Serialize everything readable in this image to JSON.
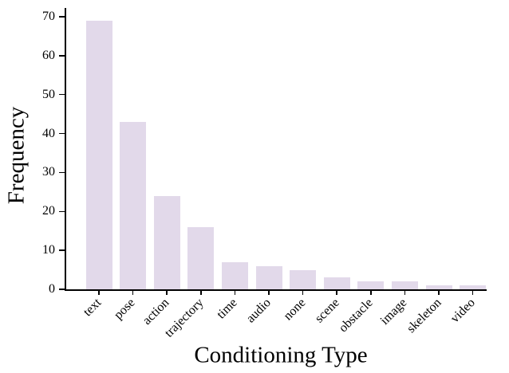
{
  "figure": {
    "background": "#ffffff"
  },
  "chart_data": {
    "type": "bar",
    "title": "",
    "xlabel": "Conditioning Type",
    "ylabel": "Frequency",
    "categories": [
      "text",
      "pose",
      "action",
      "trajectory",
      "time",
      "audio",
      "none",
      "scene",
      "obstacle",
      "image",
      "skeleton",
      "video"
    ],
    "values": [
      69,
      43,
      24,
      16,
      7,
      6,
      5,
      3,
      2,
      2,
      1,
      1
    ],
    "ylim": [
      0,
      72.25
    ],
    "yticks": [
      0,
      10,
      20,
      30,
      40,
      50,
      60,
      70
    ],
    "xtick_rotation_deg": 45,
    "grid": false,
    "legend": "none",
    "bar_color": "#e2d9ea",
    "axis_color": "#000000",
    "text_color": "#000000"
  }
}
